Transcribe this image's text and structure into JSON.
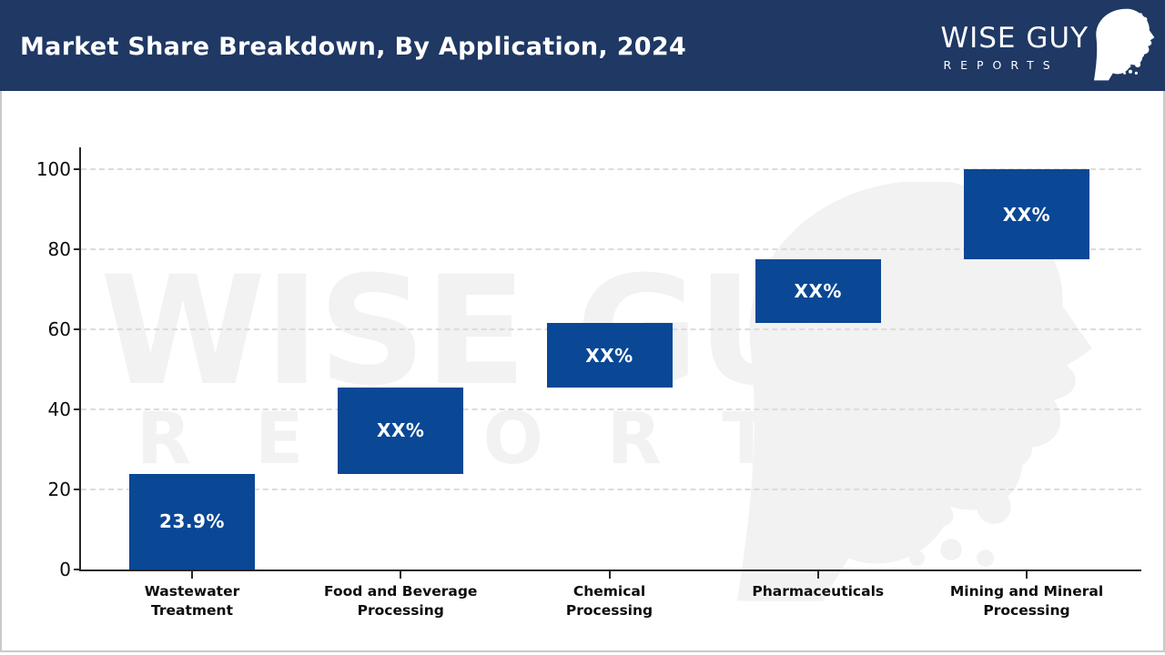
{
  "header": {
    "title": "Market Share Breakdown, By Application, 2024",
    "logo": {
      "line1": "WISE GUY",
      "line2": "REPORTS"
    },
    "bg_color": "#1f3864"
  },
  "watermark": {
    "line1": "WISE GUY",
    "line2": "REPORTS"
  },
  "chart_data": {
    "type": "bar",
    "subtype": "waterfall",
    "title": "Market Share Breakdown, By Application, 2024",
    "categories": [
      "Wastewater\nTreatment",
      "Food and Beverage\nProcessing",
      "Chemical\nProcessing",
      "Pharmaceuticals",
      "Mining and Mineral\nProcessing"
    ],
    "segments": [
      {
        "start": 0,
        "end": 23.9,
        "label": "23.9%"
      },
      {
        "start": 23.9,
        "end": 45.5,
        "label": "XX%"
      },
      {
        "start": 45.5,
        "end": 61.5,
        "label": "XX%"
      },
      {
        "start": 61.5,
        "end": 77.5,
        "label": "XX%"
      },
      {
        "start": 77.5,
        "end": 100,
        "label": "XX%"
      }
    ],
    "yticks": [
      0,
      20,
      40,
      60,
      80,
      100
    ],
    "ylim": [
      0,
      105
    ],
    "xlabel": "",
    "ylabel": "",
    "bar_color": "#0a4795",
    "grid": "horizontal-dashed",
    "grid_color": "#dcdcdc",
    "axis_color": "#262626",
    "legend": "none"
  }
}
